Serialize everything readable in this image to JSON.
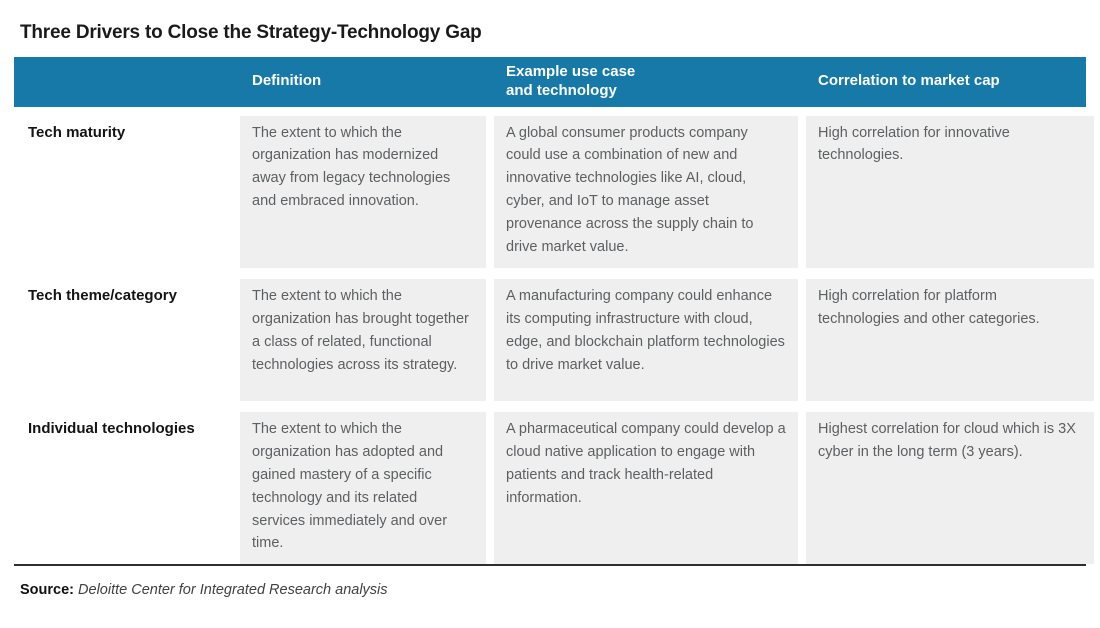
{
  "title": "Three Drivers to Close the Strategy-Technology Gap",
  "colors": {
    "header_bg": "#1779a8",
    "header_text": "#ffffff",
    "cell_bg": "#efefef",
    "body_text": "#5d6063",
    "label_text": "#141414",
    "bottom_border": "#2e2e2e"
  },
  "table": {
    "columns": {
      "label": "",
      "definition": "Definition",
      "example": "Example use case\nand technology",
      "correlation": "Correlation to market cap"
    },
    "rows": [
      {
        "label": "Tech maturity",
        "definition": "The extent to which the organization has modernized away from legacy technologies and embraced innovation.",
        "example": "A global consumer products company could use a combination of new and innovative technologies like AI, cloud, cyber, and IoT to manage asset provenance across the supply chain to drive market value.",
        "correlation": "High correlation for innovative technologies."
      },
      {
        "label": "Tech theme/category",
        "definition": "The extent to which the organization has brought together a class of related, functional technologies across its strategy.",
        "example": "A manufacturing company could enhance its computing infrastructure with cloud, edge, and blockchain platform technologies to drive market value.",
        "correlation": "High correlation for platform technologies and other categories."
      },
      {
        "label": "Individual technologies",
        "definition": "The extent to which the organization has adopted and gained mastery of a specific technology and its related services immediately and over time.",
        "example": "A pharmaceutical company could develop a cloud native application to engage with patients and track health-related information.",
        "correlation": "Highest correlation for cloud which is 3X cyber in the long term (3 years)."
      }
    ]
  },
  "source": {
    "label": "Source:",
    "text": "Deloitte Center for Integrated Research analysis"
  }
}
